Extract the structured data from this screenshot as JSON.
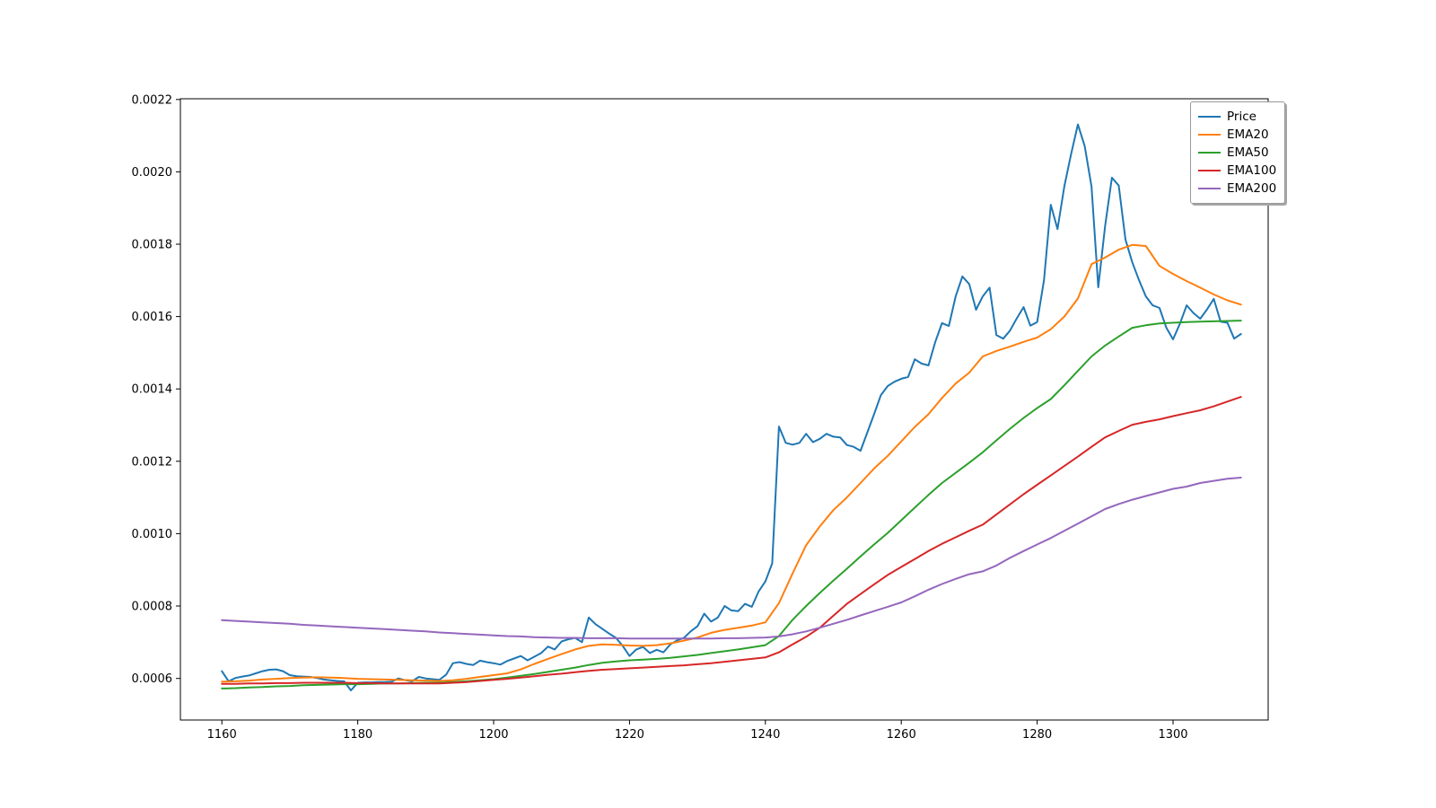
{
  "figure": {
    "background": "#ffffff",
    "title": ""
  },
  "chart_data": {
    "type": "line",
    "title": "",
    "xlabel": "",
    "ylabel": "",
    "grid": false,
    "xlim": [
      1153.9,
      1314.0
    ],
    "ylim": [
      0.000485,
      0.002202
    ],
    "xticks": [
      1160,
      1180,
      1200,
      1220,
      1240,
      1260,
      1280,
      1300
    ],
    "ytick_labels": [
      "0.0006",
      "0.0008",
      "0.0010",
      "0.0012",
      "0.0014",
      "0.0016",
      "0.0018",
      "0.0020",
      "0.0022"
    ],
    "legend": {
      "position": "upper right",
      "entries": [
        "Price",
        "EMA20",
        "EMA50",
        "EMA100",
        "EMA200"
      ]
    },
    "series": [
      {
        "name": "Price",
        "color": "#1f77b4",
        "x_start": 1160,
        "x_step": 1,
        "values": [
          0.00062,
          0.000592,
          0.000601,
          0.000605,
          0.000608,
          0.000614,
          0.00062,
          0.000624,
          0.000625,
          0.00062,
          0.000609,
          0.000606,
          0.000605,
          0.000604,
          0.000601,
          0.000597,
          0.000595,
          0.000593,
          0.000592,
          0.000567,
          0.000588,
          0.000589,
          0.000589,
          0.00059,
          0.00059,
          0.000591,
          0.0006,
          0.000595,
          0.000592,
          0.000604,
          0.0006,
          0.000598,
          0.000596,
          0.00061,
          0.000642,
          0.000645,
          0.00064,
          0.000637,
          0.000649,
          0.000645,
          0.000642,
          0.000638,
          0.000648,
          0.000655,
          0.000662,
          0.00065,
          0.00066,
          0.00067,
          0.000688,
          0.00068,
          0.000702,
          0.000708,
          0.000712,
          0.0007,
          0.000768,
          0.00075,
          0.000737,
          0.000724,
          0.000712,
          0.00069,
          0.000662,
          0.00068,
          0.000687,
          0.00067,
          0.000679,
          0.000672,
          0.000694,
          0.000705,
          0.000712,
          0.00073,
          0.000744,
          0.000779,
          0.000757,
          0.000768,
          0.0008,
          0.000788,
          0.000786,
          0.000806,
          0.000798,
          0.00084,
          0.000868,
          0.000918,
          0.001296,
          0.001251,
          0.001246,
          0.001251,
          0.001276,
          0.001253,
          0.001262,
          0.001276,
          0.001268,
          0.001266,
          0.001245,
          0.00124,
          0.001229,
          0.00128,
          0.00133,
          0.001383,
          0.001408,
          0.00142,
          0.001428,
          0.001433,
          0.001482,
          0.00147,
          0.001465,
          0.00153,
          0.001582,
          0.001574,
          0.001656,
          0.001711,
          0.00169,
          0.001619,
          0.001656,
          0.00168,
          0.001549,
          0.001539,
          0.001561,
          0.001595,
          0.001626,
          0.001575,
          0.001585,
          0.0017,
          0.001909,
          0.001842,
          0.00196,
          0.00205,
          0.002131,
          0.002071,
          0.001959,
          0.001681,
          0.00185,
          0.001984,
          0.001962,
          0.001813,
          0.00175,
          0.0017,
          0.001656,
          0.001631,
          0.001624,
          0.00157,
          0.001537,
          0.00158,
          0.001631,
          0.00161,
          0.001594,
          0.00162,
          0.001649,
          0.001586,
          0.001583,
          0.001539,
          0.001552
        ]
      },
      {
        "name": "EMA20",
        "color": "#ff7f0e",
        "x_start": 1160,
        "x_step": 2,
        "values": [
          0.000591,
          0.000592,
          0.000594,
          0.000597,
          0.000599,
          0.000601,
          0.000602,
          0.000603,
          0.000602,
          0.000601,
          0.000599,
          0.000598,
          0.000597,
          0.000596,
          0.000595,
          0.000594,
          0.000593,
          0.000595,
          0.000599,
          0.000604,
          0.000609,
          0.000614,
          0.000625,
          0.00064,
          0.000654,
          0.000667,
          0.00068,
          0.00069,
          0.000694,
          0.000693,
          0.000691,
          0.00069,
          0.000692,
          0.000697,
          0.000704,
          0.000713,
          0.000726,
          0.000734,
          0.00074,
          0.000746,
          0.000755,
          0.000808,
          0.00089,
          0.000968,
          0.00102,
          0.001065,
          0.0011,
          0.00114,
          0.00118,
          0.001215,
          0.001255,
          0.001295,
          0.00133,
          0.001375,
          0.001415,
          0.001445,
          0.00149,
          0.001505,
          0.001517,
          0.00153,
          0.001542,
          0.001565,
          0.0016,
          0.00165,
          0.001745,
          0.001763,
          0.001785,
          0.001798,
          0.001795,
          0.00174,
          0.001718,
          0.001698,
          0.00168,
          0.001661,
          0.001645,
          0.001633
        ]
      },
      {
        "name": "EMA50",
        "color": "#2ca02c",
        "x_start": 1160,
        "x_step": 2,
        "values": [
          0.000572,
          0.000573,
          0.000575,
          0.000576,
          0.000578,
          0.000579,
          0.000581,
          0.000582,
          0.000583,
          0.000584,
          0.000584,
          0.000585,
          0.000586,
          0.000586,
          0.000587,
          0.000588,
          0.000588,
          0.00059,
          0.000592,
          0.000595,
          0.000598,
          0.000602,
          0.000607,
          0.000612,
          0.000618,
          0.000624,
          0.00063,
          0.000637,
          0.000643,
          0.000647,
          0.00065,
          0.000652,
          0.000654,
          0.000657,
          0.000661,
          0.000665,
          0.00067,
          0.000675,
          0.00068,
          0.000686,
          0.000692,
          0.000717,
          0.000762,
          0.0008,
          0.000836,
          0.00087,
          0.000903,
          0.000937,
          0.00097,
          0.001002,
          0.001037,
          0.001072,
          0.001107,
          0.00114,
          0.001168,
          0.001196,
          0.001225,
          0.001258,
          0.00129,
          0.00132,
          0.001347,
          0.001372,
          0.00141,
          0.00145,
          0.00149,
          0.00152,
          0.001545,
          0.001569,
          0.001576,
          0.001581,
          0.001583,
          0.001585,
          0.001586,
          0.001587,
          0.001588,
          0.001589
        ]
      },
      {
        "name": "EMA100",
        "color": "#d62728",
        "x_start": 1160,
        "x_step": 2,
        "values": [
          0.000585,
          0.000585,
          0.000586,
          0.000586,
          0.000587,
          0.000587,
          0.000588,
          0.000588,
          0.000588,
          0.000588,
          0.000587,
          0.000587,
          0.000586,
          0.000586,
          0.000586,
          0.000586,
          0.000586,
          0.000588,
          0.00059,
          0.000593,
          0.000596,
          0.000599,
          0.000602,
          0.000606,
          0.00061,
          0.000613,
          0.000617,
          0.000621,
          0.000624,
          0.000626,
          0.000628,
          0.00063,
          0.000632,
          0.000634,
          0.000636,
          0.000639,
          0.000642,
          0.000646,
          0.00065,
          0.000654,
          0.000658,
          0.000672,
          0.000694,
          0.000715,
          0.00074,
          0.000773,
          0.000806,
          0.000833,
          0.00086,
          0.000886,
          0.000908,
          0.00093,
          0.000952,
          0.000972,
          0.00099,
          0.001008,
          0.001025,
          0.001053,
          0.001081,
          0.001109,
          0.001135,
          0.001161,
          0.001187,
          0.001213,
          0.00124,
          0.001266,
          0.001284,
          0.001301,
          0.001309,
          0.001316,
          0.001325,
          0.001333,
          0.001341,
          0.001352,
          0.001365,
          0.001378
        ]
      },
      {
        "name": "EMA200",
        "color": "#9467bd",
        "x_start": 1160,
        "x_step": 2,
        "values": [
          0.000761,
          0.000759,
          0.000757,
          0.000755,
          0.000753,
          0.000751,
          0.000748,
          0.000746,
          0.000744,
          0.000742,
          0.00074,
          0.000738,
          0.000736,
          0.000734,
          0.000732,
          0.00073,
          0.000727,
          0.000725,
          0.000723,
          0.000721,
          0.000719,
          0.000717,
          0.000716,
          0.000714,
          0.000713,
          0.000712,
          0.000712,
          0.000711,
          0.000711,
          0.000711,
          0.00071,
          0.00071,
          0.00071,
          0.00071,
          0.00071,
          0.00071,
          0.00071,
          0.000711,
          0.000711,
          0.000712,
          0.000713,
          0.000716,
          0.000722,
          0.00073,
          0.00074,
          0.000751,
          0.000762,
          0.000774,
          0.000786,
          0.000798,
          0.00081,
          0.000827,
          0.000845,
          0.000861,
          0.000875,
          0.000888,
          0.000896,
          0.000912,
          0.000933,
          0.000952,
          0.00097,
          0.000988,
          0.001008,
          0.001028,
          0.001048,
          0.001068,
          0.001082,
          0.001094,
          0.001104,
          0.001114,
          0.001124,
          0.00113,
          0.00114,
          0.001146,
          0.001152,
          0.001155
        ]
      }
    ]
  }
}
